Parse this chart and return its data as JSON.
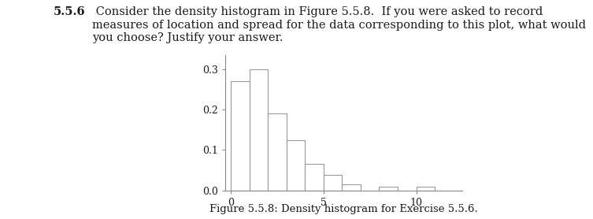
{
  "bold_prefix": "5.5.6",
  "title_rest": " Consider the density histogram in Figure 5.5.8.  If you were asked to record\nmeasures of location and spread for the data corresponding to this plot, what would\nyou choose? Justify your answer.",
  "figure_caption": "Figure 5.5.8: Density histogram for Exercise 5.5.6.",
  "bin_edges": [
    0,
    1,
    2,
    3,
    4,
    5,
    6,
    7,
    8,
    9,
    10,
    11,
    12
  ],
  "densities": [
    0.27,
    0.3,
    0.19,
    0.125,
    0.065,
    0.038,
    0.015,
    0.0,
    0.01,
    0.0,
    0.01,
    0.0
  ],
  "xlim": [
    -0.3,
    12.5
  ],
  "ylim": [
    0.0,
    0.335
  ],
  "yticks": [
    0.0,
    0.1,
    0.2,
    0.3
  ],
  "xticks": [
    0,
    5,
    10
  ],
  "face_color": "white",
  "bar_color": "white",
  "bar_edge_color": "#999999",
  "text_color": "#1a1a1a",
  "title_fontsize": 10.5,
  "caption_fontsize": 9.5,
  "tick_fontsize": 9
}
